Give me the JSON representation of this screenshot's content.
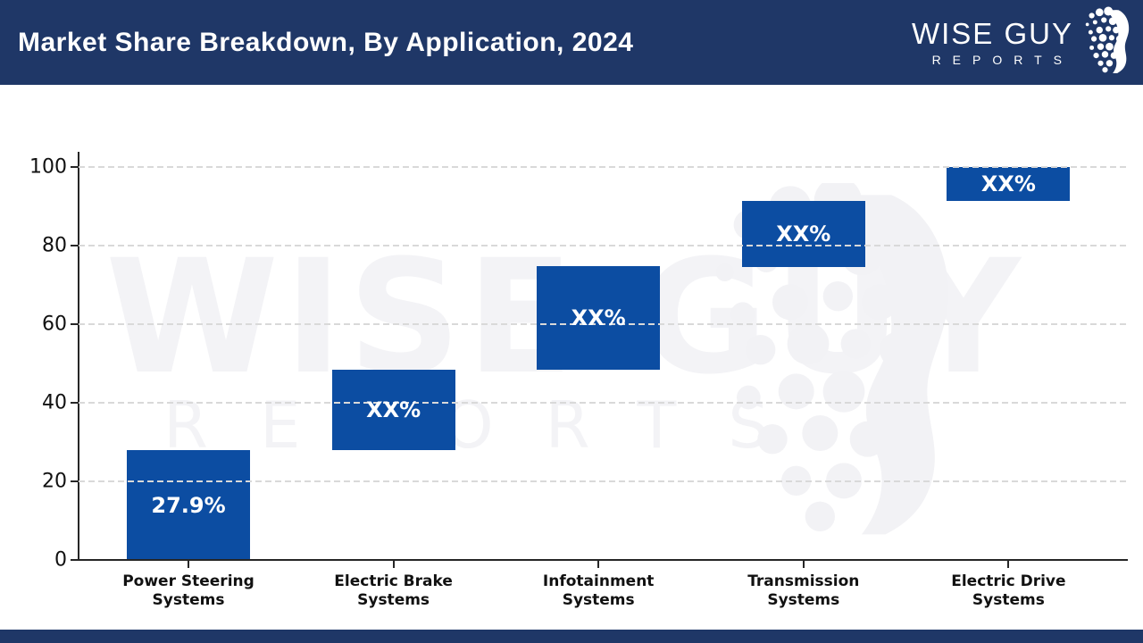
{
  "header": {
    "title": "Market Share Breakdown, By Application, 2024",
    "logo": {
      "line1": "WISE GUY",
      "line2": "REPORTS"
    }
  },
  "watermark": {
    "line1": "WISE GUY",
    "line2": "REPORTS"
  },
  "colors": {
    "header_bg": "#1f3767",
    "bar": "#0c4da2",
    "watermark": "#f3f3f6",
    "gridline": "#d9d9d9",
    "axis": "#262626"
  },
  "chart_data": {
    "type": "bar",
    "subtype": "waterfall",
    "title": "Market Share Breakdown, By Application, 2024",
    "categories": [
      [
        "Power Steering",
        "Systems"
      ],
      [
        "Electric Brake",
        "Systems"
      ],
      [
        "Infotainment",
        "Systems"
      ],
      [
        "Transmission",
        "Systems"
      ],
      [
        "Electric Drive",
        "Systems"
      ]
    ],
    "segments": [
      {
        "start": 0,
        "end": 27.9,
        "label": "27.9%"
      },
      {
        "start": 27.9,
        "end": 48.5,
        "label": "XX%"
      },
      {
        "start": 48.4,
        "end": 74.7,
        "label": "XX%"
      },
      {
        "start": 74.6,
        "end": 91.4,
        "label": "XX%"
      },
      {
        "start": 91.3,
        "end": 100,
        "label": "XX%"
      }
    ],
    "yticks": [
      0,
      20,
      40,
      60,
      80,
      100
    ],
    "ylim": [
      0,
      104
    ],
    "grid": "horizontal-dashed",
    "legend": "none"
  }
}
